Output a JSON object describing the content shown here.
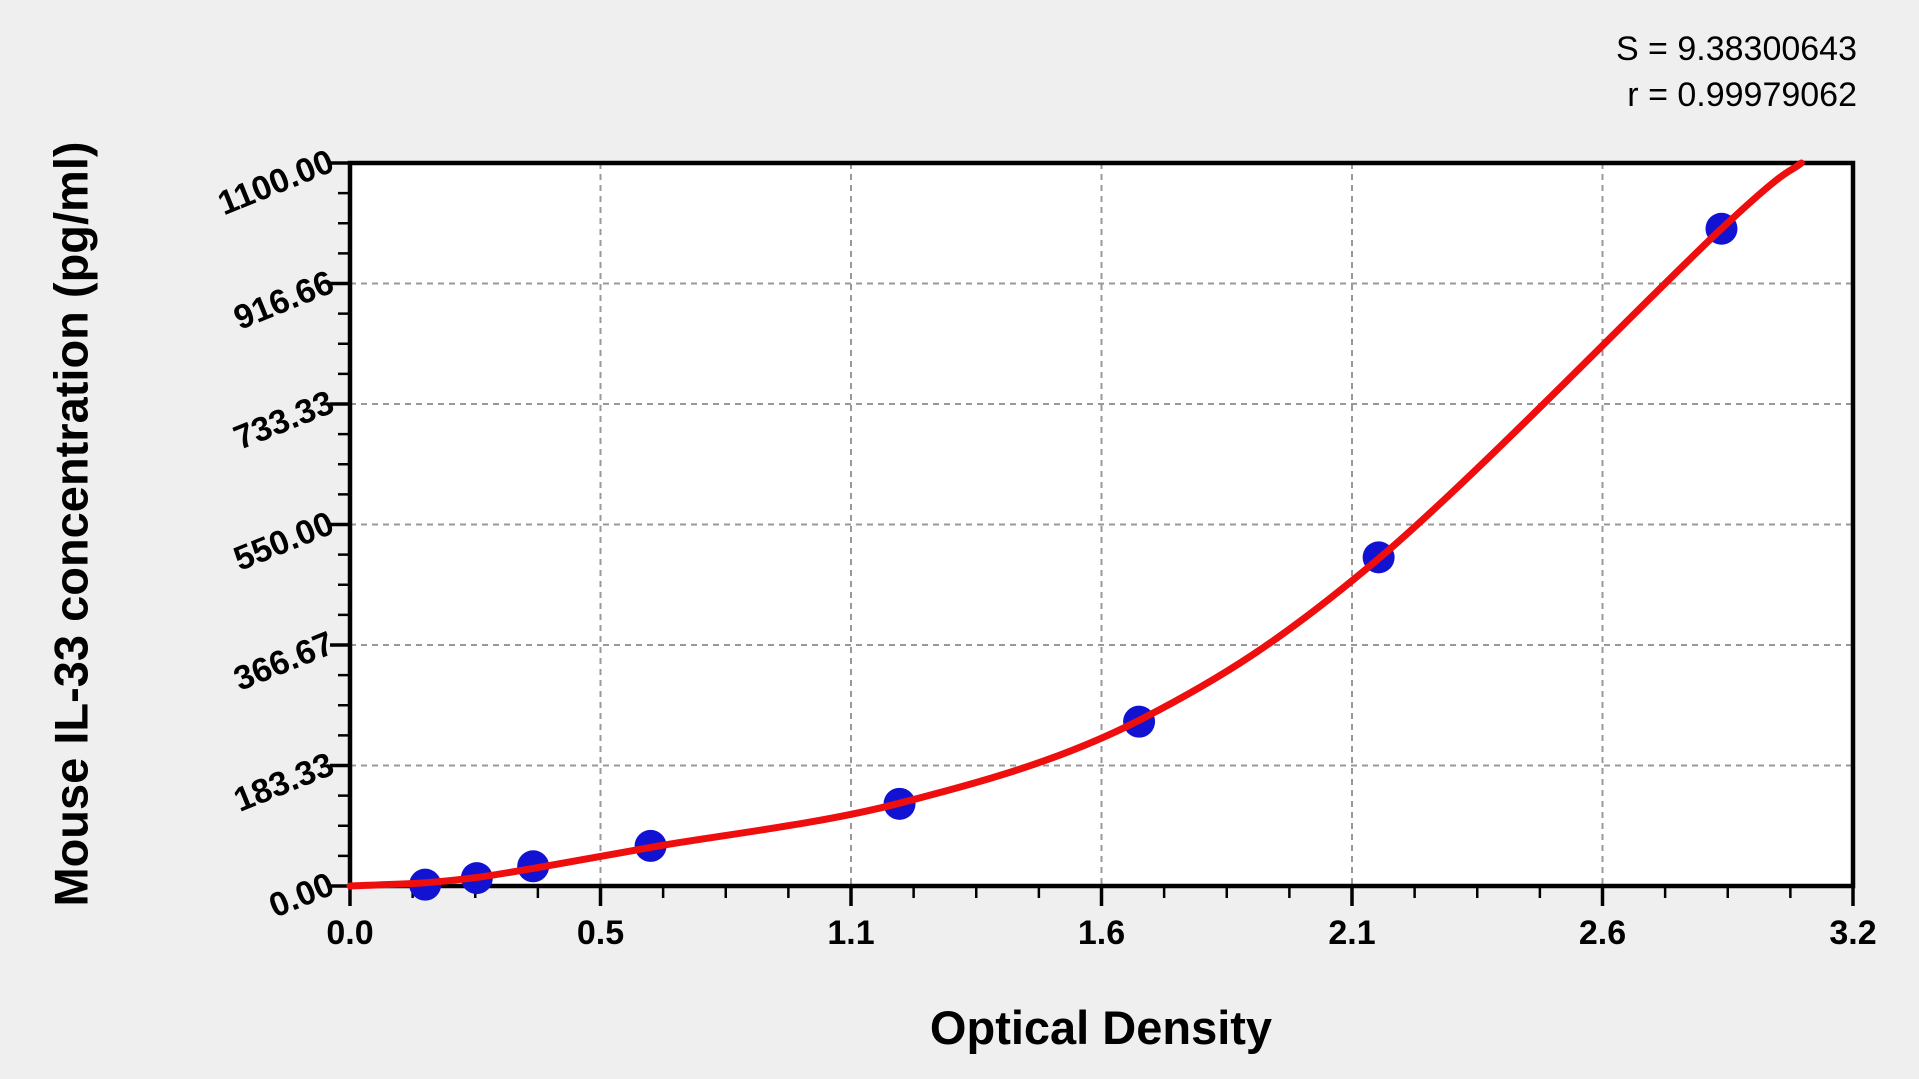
{
  "chart_data": {
    "type": "scatter",
    "title": "",
    "xlabel": "Optical Density",
    "ylabel": "Mouse IL-33 concentration (pg/ml)",
    "annotations": [
      "S = 9.38300643",
      "r = 0.99979062"
    ],
    "legend": "none",
    "xlim": [
      0,
      3.2
    ],
    "ylim": [
      0,
      1100
    ],
    "x_tick_labels": [
      "0.0",
      "0.5",
      "1.1",
      "1.6",
      "2.1",
      "2.6",
      "3.2"
    ],
    "y_tick_labels": [
      "0.00",
      "183.33",
      "366.67",
      "550.00",
      "733.33",
      "916.66",
      "1100.00"
    ],
    "minor_ticks_between_majors": 3,
    "grid": {
      "style": "dashed",
      "on_major_ticks": true
    },
    "series": [
      {
        "name": "standard-points",
        "marker": "circle",
        "points": [
          {
            "od": 0.16,
            "conc": 2
          },
          {
            "od": 0.27,
            "conc": 12
          },
          {
            "od": 0.39,
            "conc": 30
          },
          {
            "od": 0.64,
            "conc": 61
          },
          {
            "od": 1.17,
            "conc": 125
          },
          {
            "od": 1.68,
            "conc": 250
          },
          {
            "od": 2.19,
            "conc": 500
          },
          {
            "od": 2.92,
            "conc": 1000
          }
        ]
      }
    ],
    "fit_curve": {
      "name": "regression-curve",
      "anchors": [
        [
          0.0,
          0
        ],
        [
          0.16,
          5
        ],
        [
          0.27,
          13
        ],
        [
          0.4,
          28
        ],
        [
          0.65,
          60
        ],
        [
          1.17,
          126
        ],
        [
          1.68,
          252
        ],
        [
          2.19,
          498
        ],
        [
          2.92,
          1000
        ],
        [
          3.09,
          1100
        ]
      ]
    },
    "colors": {
      "page_bg": "#efefef",
      "plot_bg": "#ffffff",
      "axis": "#000000",
      "grid": "#999999",
      "points": "#1212d2",
      "curve": "#ee0e0e"
    }
  }
}
